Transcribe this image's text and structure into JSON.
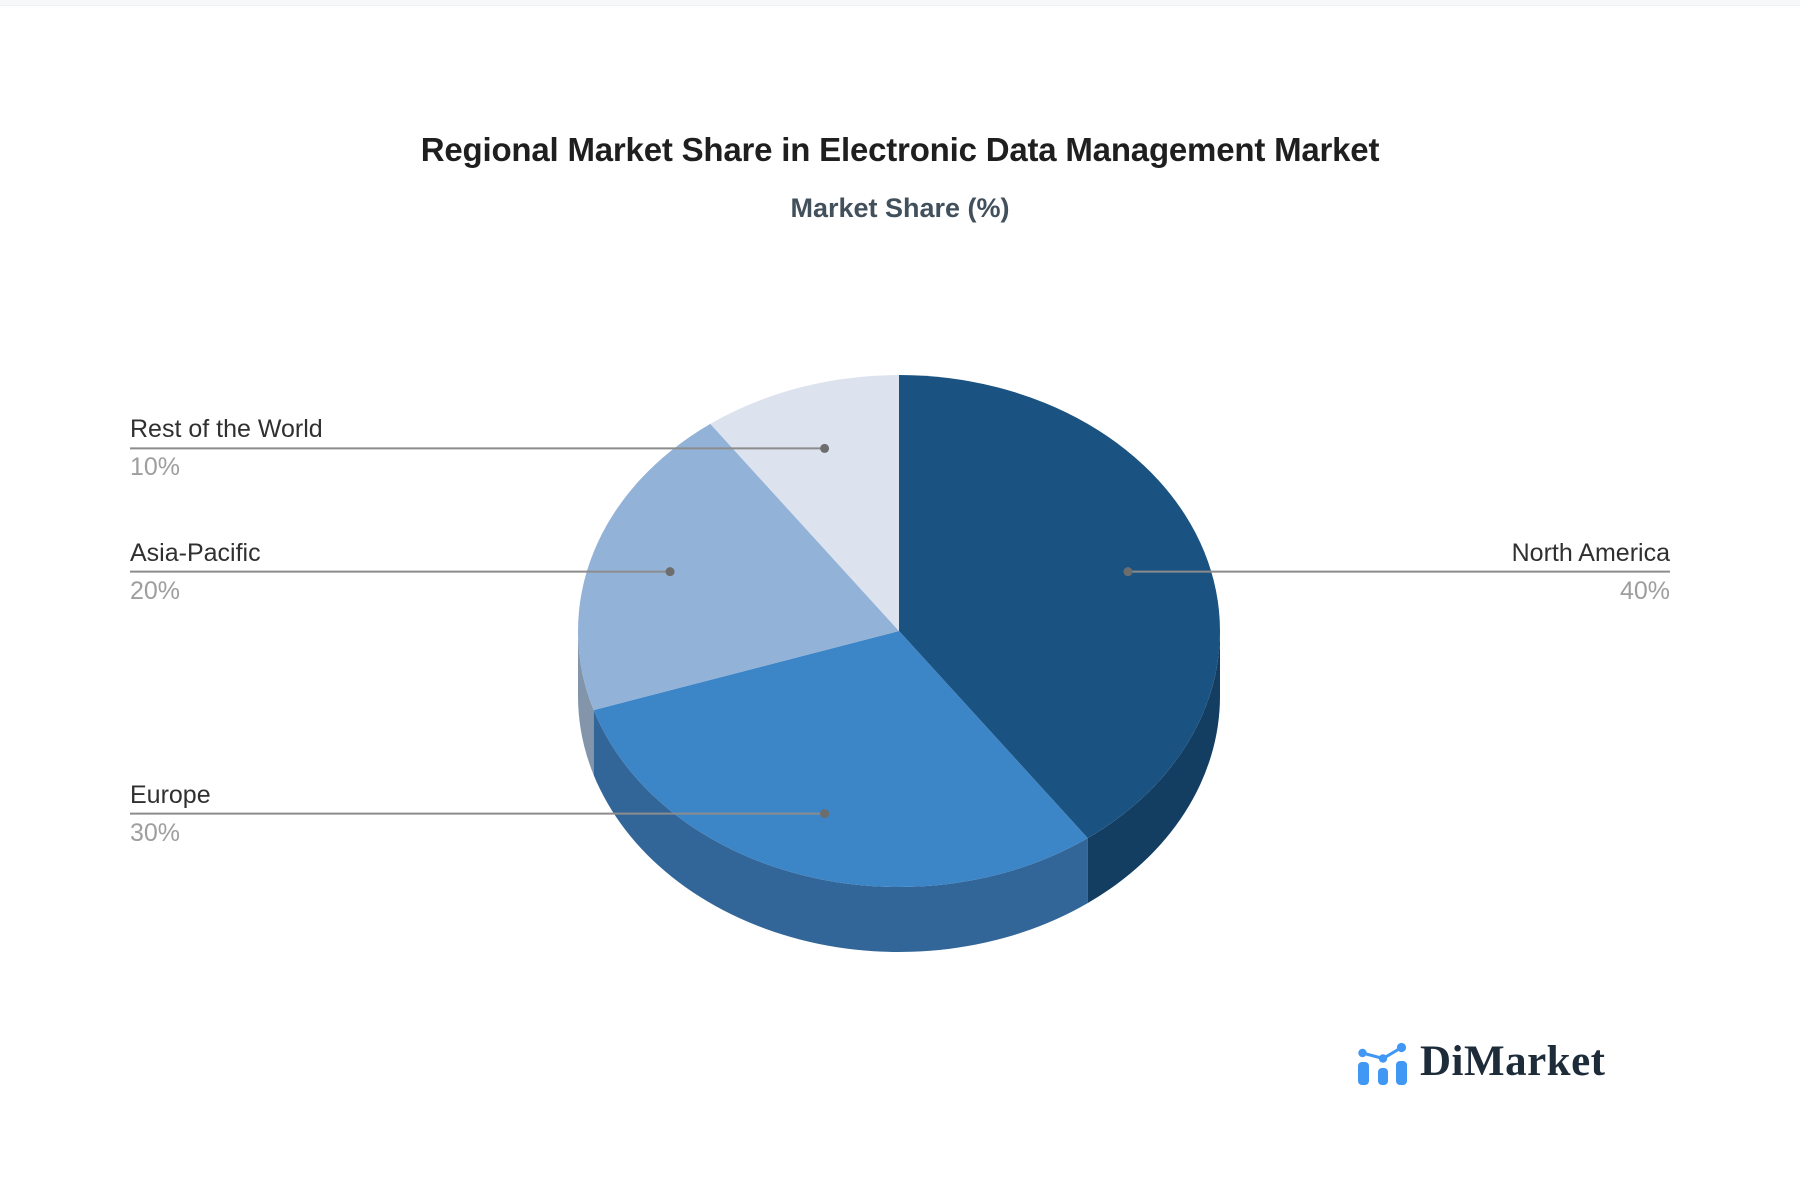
{
  "header": {
    "title": "Regional Market Share in Electronic Data Management Market",
    "subtitle": "Market Share (%)"
  },
  "chart_data": {
    "type": "pie",
    "title": "Regional Market Share in Electronic Data Management Market",
    "subtitle": "Market Share (%)",
    "unit": "percent",
    "effect": "3d",
    "start_angle_deg": 90,
    "direction": "clockwise",
    "legend_position": "none",
    "slices": [
      {
        "label": "North America",
        "value": 40,
        "pct": "40%",
        "color": "#1a5381",
        "side_color": "#133d61",
        "label_side": "right"
      },
      {
        "label": "Europe",
        "value": 30,
        "pct": "30%",
        "color": "#3c85c7",
        "side_color": "#336698",
        "label_side": "left"
      },
      {
        "label": "Asia-Pacific",
        "value": 20,
        "pct": "20%",
        "color": "#93b2d8",
        "side_color": "#8295ab",
        "label_side": "left"
      },
      {
        "label": "Rest of the World",
        "value": 10,
        "pct": "10%",
        "color": "#dde3ee",
        "side_color": "#c5cedd",
        "label_side": "left"
      }
    ]
  },
  "style": {
    "title_color": "#1f1f1f",
    "subtitle_color": "#42505c",
    "label_color": "#303030",
    "pct_color": "#9e9e9e",
    "leader_line_color": "#8c8c8c",
    "dot_color": "#6d6d6d",
    "top_strip_color": "#f7f8f9",
    "background": "#ffffff"
  },
  "logo": {
    "name": "DiMarket",
    "icon": "bar-line-chart-icon",
    "icon_color": "#4098f4",
    "text_color": "#1e2c3a"
  }
}
